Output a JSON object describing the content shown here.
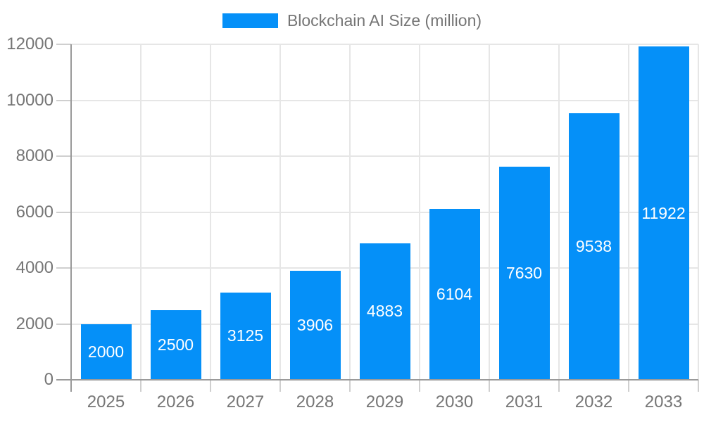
{
  "chart_data": {
    "type": "bar",
    "title": "Blockchain AI Size (million)",
    "legend_label": "Blockchain AI Size (million)",
    "categories": [
      "2025",
      "2026",
      "2027",
      "2028",
      "2029",
      "2030",
      "2031",
      "2032",
      "2033"
    ],
    "series": [
      {
        "name": "Blockchain AI Size (million)",
        "values": [
          2000,
          2500,
          3125,
          3906,
          4883,
          6104,
          7630,
          9538,
          11922
        ]
      }
    ],
    "xlabel": "",
    "ylabel": "",
    "ylim": [
      0,
      12000
    ],
    "yticks": [
      0,
      2000,
      4000,
      6000,
      8000,
      10000,
      12000
    ],
    "grid": true,
    "legend_position": "top-center",
    "value_labels": "inside-center",
    "colors": {
      "bar": "#0590f8",
      "bar_label": "#ffffff",
      "axis_line": "#9a9a9a",
      "tick_mark": "#cfcfcf",
      "gridline": "#e6e6e6",
      "tick_label": "#757575",
      "legend_text": "#757575",
      "background": "#ffffff"
    }
  }
}
